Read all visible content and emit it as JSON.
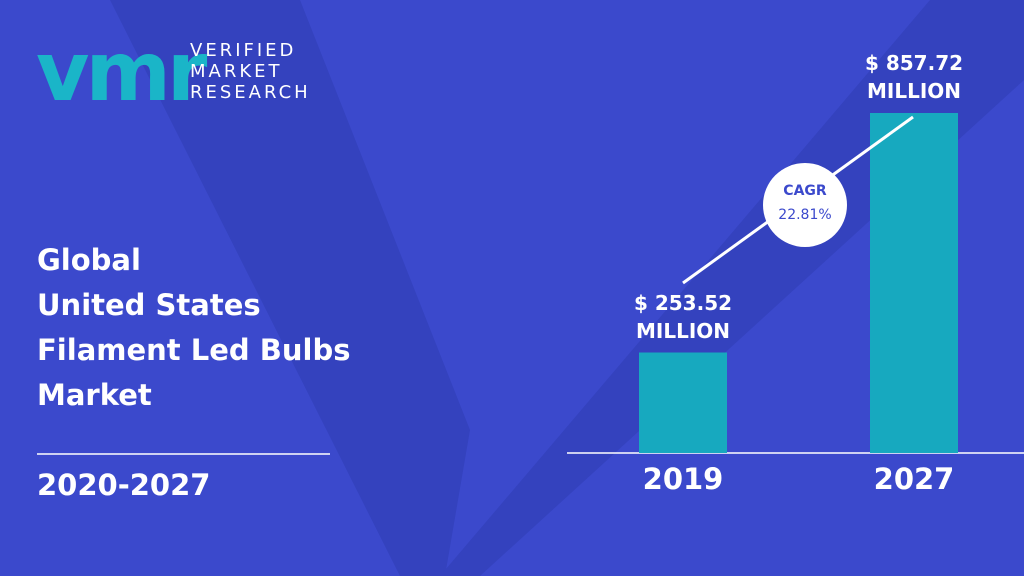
{
  "logo": {
    "mark": "vmr",
    "lines": [
      "VERIFIED",
      "MARKET",
      "RESEARCH"
    ]
  },
  "chart_data": {
    "type": "bar",
    "title_lines": [
      "Global",
      "United States",
      "Filament Led Bulbs",
      "Market"
    ],
    "period": "2020-2027",
    "categories": [
      "2019",
      "2027"
    ],
    "values": [
      253.52,
      857.72
    ],
    "value_labels": [
      "$ 253.52 MILLION",
      "$ 857.72 MILLION"
    ],
    "color": "#17a9bf",
    "annotation": {
      "label": "CAGR",
      "value": 22.81,
      "value_label": "22.81%"
    }
  }
}
